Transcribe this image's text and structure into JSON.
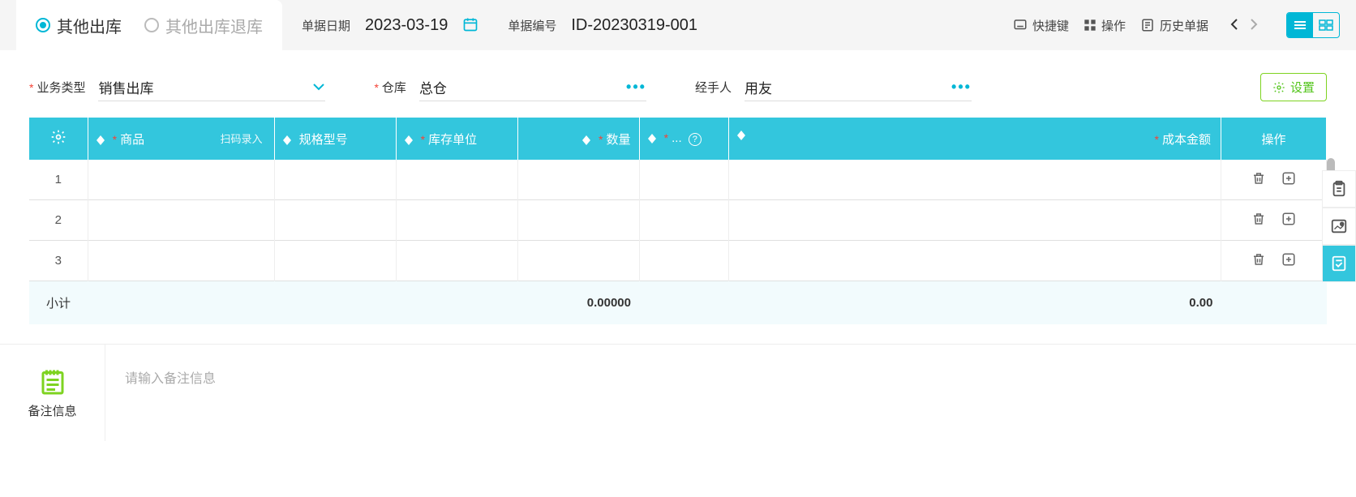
{
  "colors": {
    "primary": "#33c6dd",
    "primaryDark": "#00b7d6",
    "green": "#52c41a",
    "red": "#f44336"
  },
  "tabs": {
    "active": {
      "label": "其他出库"
    },
    "inactive": {
      "label": "其他出库退库"
    }
  },
  "header": {
    "dateLabel": "单据日期",
    "dateValue": "2023-03-19",
    "docNoLabel": "单据编号",
    "docNoValue": "ID-20230319-001",
    "shortcut": "快捷键",
    "operate": "操作",
    "history": "历史单据"
  },
  "form": {
    "bizType": {
      "label": "业务类型",
      "value": "销售出库"
    },
    "warehouse": {
      "label": "仓库",
      "value": "总仓"
    },
    "handler": {
      "label": "经手人",
      "value": "用友"
    },
    "settingsBtn": "设置"
  },
  "table": {
    "columns": {
      "product": "商品",
      "scan": "扫码录入",
      "spec": "规格型号",
      "unit": "库存单位",
      "qty": "数量",
      "narrow": "...",
      "cost": "成本金额",
      "actions": "操作"
    },
    "rows": [
      {
        "n": "1"
      },
      {
        "n": "2"
      },
      {
        "n": "3"
      }
    ],
    "subtotal": {
      "label": "小计",
      "qty": "0.00000",
      "cost": "0.00"
    }
  },
  "notes": {
    "label": "备注信息",
    "placeholder": "请输入备注信息"
  }
}
